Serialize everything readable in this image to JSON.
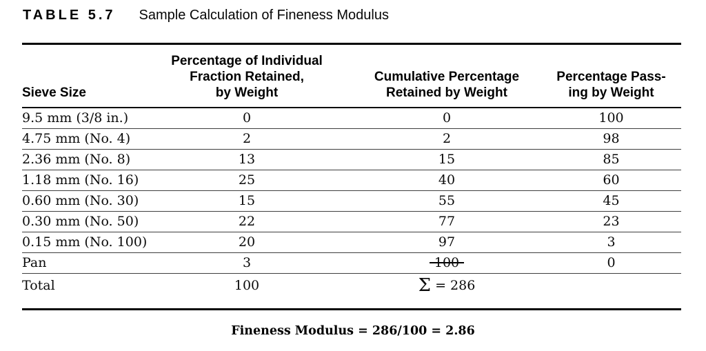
{
  "title": {
    "label": "TABLE 5.7",
    "caption": "Sample Calculation of Fineness Modulus"
  },
  "table": {
    "headers": {
      "sieve": "Sieve Size",
      "individual": "Percentage of Individual\nFraction Retained,\nby Weight",
      "cumulative": "Cumulative Percentage\nRetained by Weight",
      "passing": "Percentage Pass-\ning by Weight"
    },
    "rows": [
      {
        "sieve": "9.5 mm (3/8 in.)",
        "individual": "0",
        "cumulative": "0",
        "passing": "100"
      },
      {
        "sieve": "4.75 mm (No. 4)",
        "individual": "2",
        "cumulative": "2",
        "passing": "98"
      },
      {
        "sieve": "2.36 mm (No. 8)",
        "individual": "13",
        "cumulative": "15",
        "passing": "85"
      },
      {
        "sieve": "1.18 mm (No. 16)",
        "individual": "25",
        "cumulative": "40",
        "passing": "60"
      },
      {
        "sieve": "0.60 mm (No. 30)",
        "individual": "15",
        "cumulative": "55",
        "passing": "45"
      },
      {
        "sieve": "0.30 mm (No. 50)",
        "individual": "22",
        "cumulative": "77",
        "passing": "23"
      },
      {
        "sieve": "0.15 mm (No. 100)",
        "individual": "20",
        "cumulative": "97",
        "passing": "3"
      },
      {
        "sieve": "Pan",
        "individual": "3",
        "cumulative": "100",
        "cumulative_struck": true,
        "passing": "0"
      },
      {
        "sieve": "Total",
        "individual": "100",
        "cumulative": "Σ = 286",
        "is_total": true,
        "passing": ""
      }
    ]
  },
  "footer": {
    "result": "Fineness Modulus = 286/100 = 2.86"
  }
}
